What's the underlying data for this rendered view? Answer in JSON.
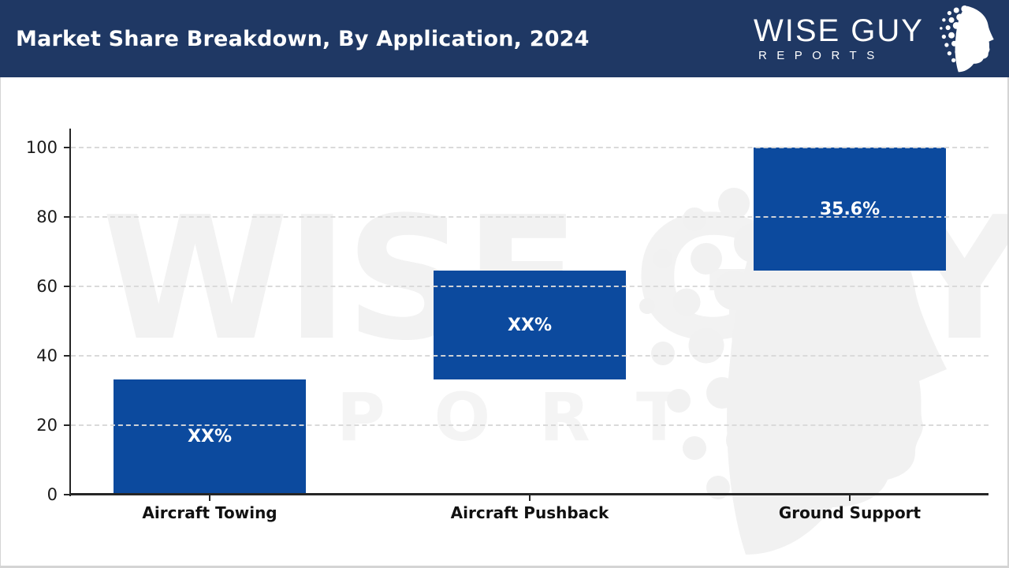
{
  "header": {
    "title": "Market Share Breakdown, By Application, 2024",
    "logo": {
      "line1": "WISE GUY",
      "line2": "REPORTS"
    }
  },
  "watermark": {
    "line1": "WISE GUY",
    "line2": "REPORTS"
  },
  "colors": {
    "header_bg": "#1f3864",
    "bar": "#0c4a9e",
    "bar_label": "#ffffff",
    "axis": "#262626",
    "grid": "#d9d9d9",
    "watermark": "#f2f2f2"
  },
  "chart_data": {
    "type": "bar",
    "variant": "floating-segment-waterfall",
    "title": "Market Share Breakdown, By Application, 2024",
    "categories": [
      "Aircraft Towing",
      "Aircraft Pushback",
      "Ground Support"
    ],
    "series": [
      {
        "name": "Market share (%)",
        "segments": [
          {
            "category": "Aircraft Towing",
            "start": 0,
            "end": 33.1,
            "label": "XX%"
          },
          {
            "category": "Aircraft Pushback",
            "start": 33.1,
            "end": 64.4,
            "label": "XX%"
          },
          {
            "category": "Ground Support",
            "start": 64.4,
            "end": 100,
            "label": "35.6%",
            "value": 35.6
          }
        ]
      }
    ],
    "xlabel": "",
    "ylabel": "",
    "yticks": [
      0,
      20,
      40,
      60,
      80,
      100
    ],
    "ylim": [
      0,
      105.4
    ],
    "grid": "horizontal-dashed",
    "legend": "none"
  }
}
